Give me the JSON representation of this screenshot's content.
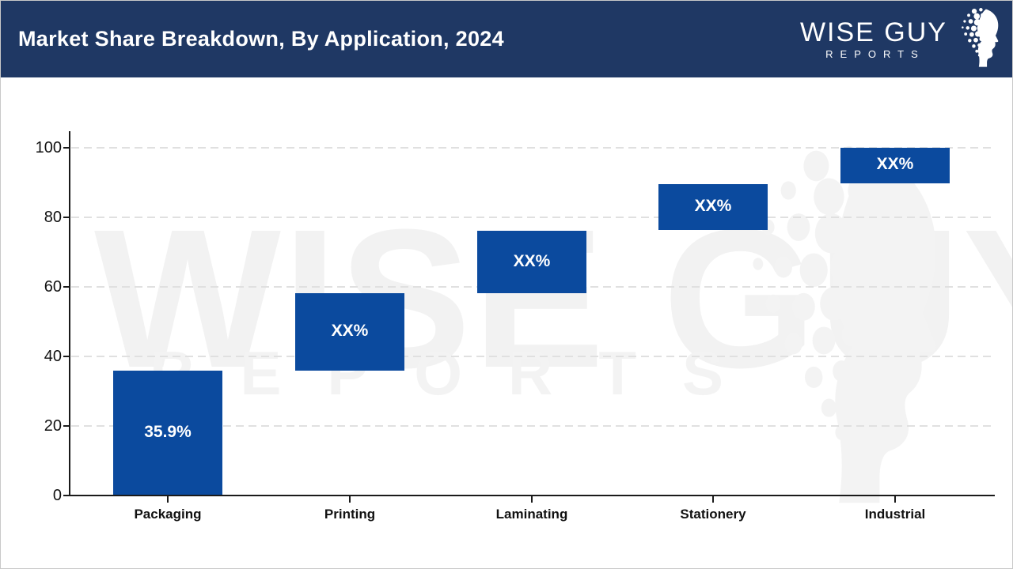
{
  "header": {
    "title": "Market Share Breakdown, By Application, 2024",
    "logo": {
      "line1": "WISE GUY",
      "line2": "REPORTS"
    }
  },
  "watermark": {
    "line1": "WISE GUY",
    "line2": "REPORTS"
  },
  "chart_data": {
    "type": "bar",
    "variant": "waterfall",
    "title": "Market Share Breakdown, By Application, 2024",
    "categories": [
      "Packaging",
      "Printing",
      "Laminating",
      "Stationery",
      "Industrial"
    ],
    "bars": [
      {
        "category": "Packaging",
        "label": "35.9%",
        "start": 0,
        "end": 35.9
      },
      {
        "category": "Printing",
        "label": "XX%",
        "start": 35.9,
        "end": 58.2
      },
      {
        "category": "Laminating",
        "label": "XX%",
        "start": 58.2,
        "end": 76.1
      },
      {
        "category": "Stationery",
        "label": "XX%",
        "start": 76.4,
        "end": 89.6
      },
      {
        "category": "Industrial",
        "label": "XX%",
        "start": 89.8,
        "end": 100
      }
    ],
    "ylim": [
      0,
      100
    ],
    "yticks": [
      0,
      20,
      40,
      60,
      80,
      100
    ],
    "xlabel": "",
    "ylabel": "",
    "grid": "horizontal-dashed",
    "legend": "none",
    "colors": {
      "bar": "#0b4a9e",
      "bar_label": "#ffffff",
      "axis": "#1a1a1a",
      "grid": "#e0e0e0",
      "header_bg": "#1f3864",
      "watermark": "#f2f2f2"
    }
  }
}
